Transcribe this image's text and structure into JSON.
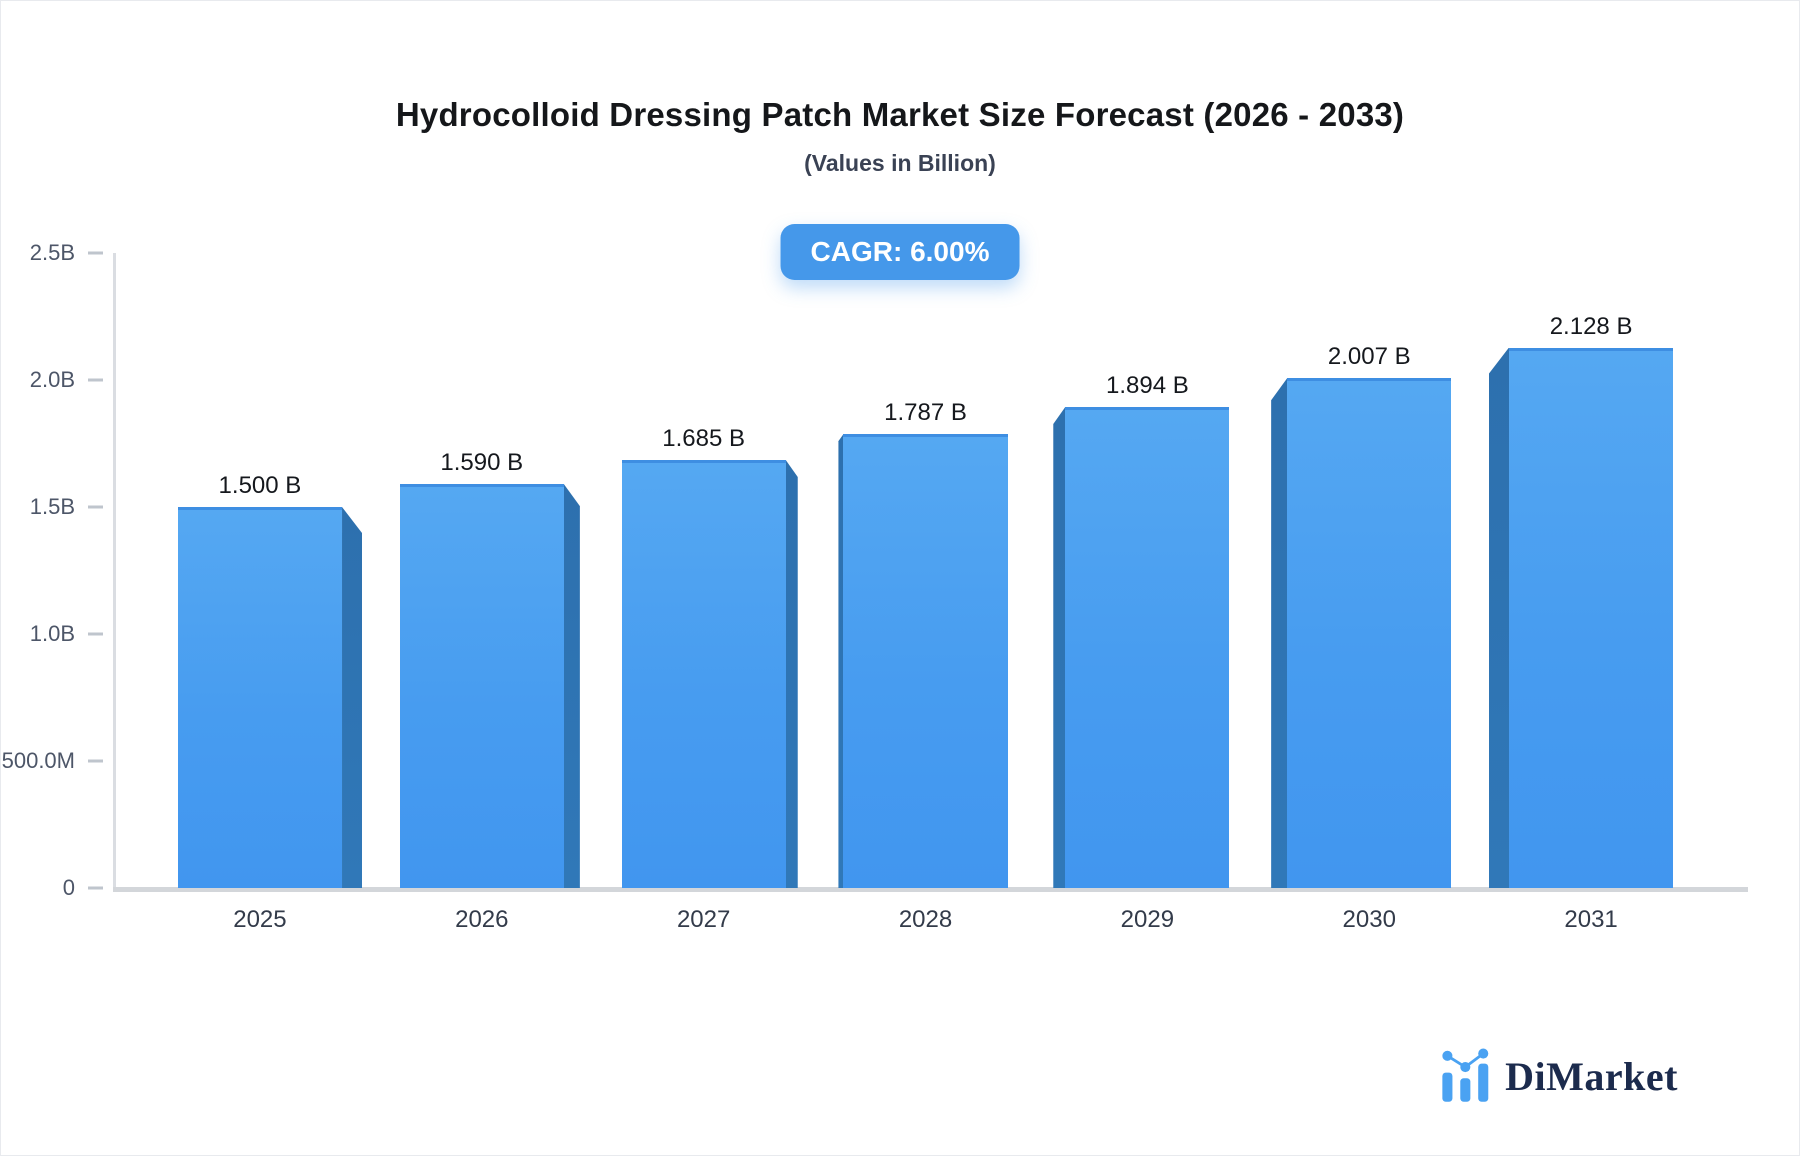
{
  "header": {
    "title": "Hydrocolloid Dressing Patch Market Size Forecast (2026 - 2033)",
    "subtitle": "(Values in Billion)"
  },
  "badge": {
    "label": "CAGR: 6.00%"
  },
  "chart_data": {
    "type": "bar",
    "categories": [
      "2025",
      "2026",
      "2027",
      "2028",
      "2029",
      "2030",
      "2031"
    ],
    "values": [
      1.5,
      1.59,
      1.685,
      1.787,
      1.894,
      2.007,
      2.128
    ],
    "value_labels": [
      "1.500 B",
      "1.590 B",
      "1.685 B",
      "1.787 B",
      "1.894 B",
      "2.007 B",
      "2.128 B"
    ],
    "title": "Hydrocolloid Dressing Patch Market Size Forecast (2026 - 2033)",
    "subtitle": "(Values in Billion)",
    "xlabel": "",
    "ylabel": "",
    "ylim": [
      0,
      2.5
    ],
    "grid": false,
    "legend": "none",
    "y_ticks": [
      {
        "label": "0",
        "value": 0.0
      },
      {
        "label": "500.0M",
        "value": 0.5
      },
      {
        "label": "1.0B",
        "value": 1.0
      },
      {
        "label": "1.5B",
        "value": 1.5
      },
      {
        "label": "2.0B",
        "value": 2.0
      },
      {
        "label": "2.5B",
        "value": 2.5
      }
    ],
    "bar_color": "#479cf0",
    "bar_side_color": "#2f74b4",
    "cagr_color": "#4598ea"
  },
  "footer": {
    "brand": "DiMarket"
  }
}
